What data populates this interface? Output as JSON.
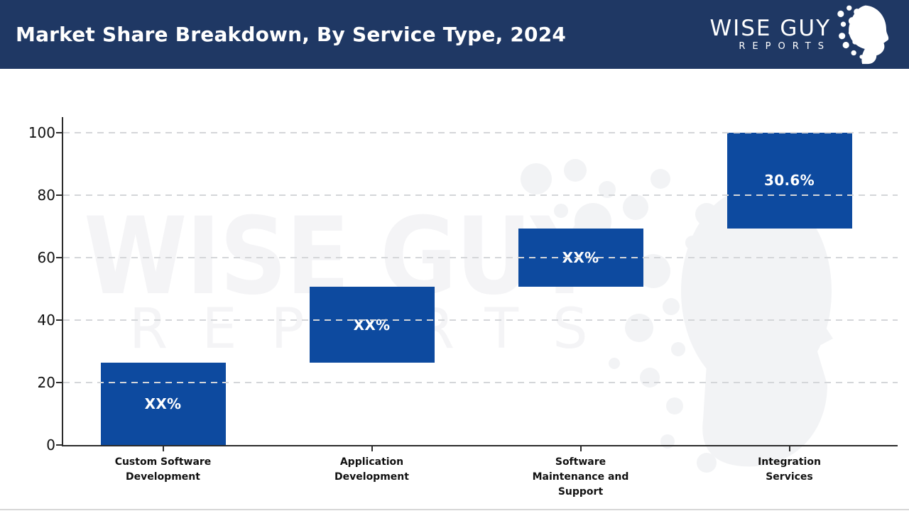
{
  "header": {
    "title": "Market Share Breakdown, By Service Type, 2024",
    "logo": {
      "line1": "WISE GUY",
      "line2": "REPORTS"
    }
  },
  "watermark": {
    "line1": "WISE GUY",
    "line2": "REPORTS"
  },
  "chart_data": {
    "type": "bar",
    "subtype": "waterfall-floating-bars",
    "title": "Market Share Breakdown, By Service Type, 2024",
    "unit": "%",
    "categories": [
      {
        "label": "Custom Software Development",
        "lines": [
          "Custom Software",
          "Development"
        ]
      },
      {
        "label": "Application Development",
        "lines": [
          "Application",
          "Development"
        ]
      },
      {
        "label": "Software Maintenance and Support",
        "lines": [
          "Software",
          "Maintenance and",
          "Support"
        ]
      },
      {
        "label": "Integration Services",
        "lines": [
          "Integration",
          "Services"
        ]
      }
    ],
    "bars": [
      {
        "label": "XX%",
        "start": 0,
        "end": 26.4,
        "value": 26.4
      },
      {
        "label": "XX%",
        "start": 26.4,
        "end": 50.6,
        "value": 24.2
      },
      {
        "label": "XX%",
        "start": 50.6,
        "end": 69.4,
        "value": 18.8
      },
      {
        "label": "30.6%",
        "start": 69.4,
        "end": 100,
        "value": 30.6
      }
    ],
    "yticks": [
      0,
      20,
      40,
      60,
      80,
      100
    ],
    "ylim": [
      0,
      100
    ],
    "xlabel": "",
    "ylabel": "",
    "grid": "horizontal-dashed-over-bars",
    "legend": "none",
    "bar_color": "#0d4a9f",
    "bar_label_color": "#ffffff"
  },
  "colors": {
    "header_bg": "#1f3864",
    "bar": "#0d4a9f",
    "axis": "#2b2b2b",
    "grid": "#d4d6d9",
    "watermark": "#f2f3f5",
    "bottom_line": "#d8d8d8",
    "chart_bg": "#ffffff"
  }
}
